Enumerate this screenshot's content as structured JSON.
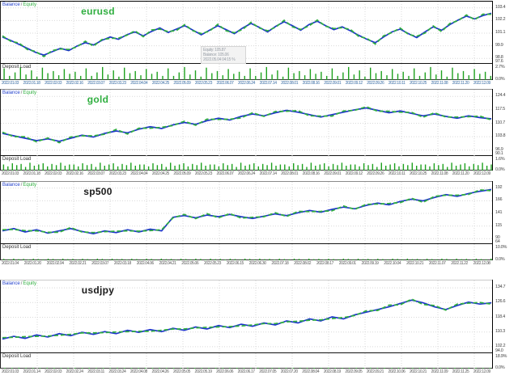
{
  "window": {
    "background": "#ffffff"
  },
  "colors": {
    "balance_line": "#1e35cc",
    "equity_line": "#2fae3f",
    "deposit_bars": "#1fa11f",
    "grid": "#d9d9d9",
    "axis_text": "#444444",
    "title_green": "#2fae3f",
    "title_black": "#1a1a1a"
  },
  "equity_delta": [
    2,
    -1.5,
    2.5,
    -2,
    1.5,
    -2.5,
    2,
    -1
  ],
  "tooltip": {
    "lines": [
      "Equity: 105.87",
      "Balance: 105.06",
      "2022.05.04 04:15 %"
    ]
  },
  "chart_data": [
    {
      "type": "line",
      "title": "eurusd",
      "title_color": "#2fae3f",
      "legend_balance": "Balance",
      "legend_sep": "/",
      "legend_equity": "Equity",
      "deposit_label": "Deposit Load",
      "legend_position": "top-left",
      "grid": true,
      "y_ticks": [
        "103.4",
        "102.2",
        "101.1",
        "99.9",
        "98.8"
      ],
      "y_bottom": "97.6",
      "deposit_max": "2.7%",
      "deposit_min": "0.0%",
      "x_dates": [
        "2022.01.03",
        "2022.01.18",
        "2022.02.03",
        "2022.02.16",
        "2022.03.07",
        "2022.03.23",
        "2022.04.04",
        "2022.04.25",
        "2022.05.09",
        "2022.05.23",
        "2022.06.07",
        "2022.06.24",
        "2022.07.14",
        "2022.08.01",
        "2022.08.16",
        "2022.09.01",
        "2022.09.12",
        "2022.09.26",
        "2022.10.11",
        "2022.10.25",
        "2022.11.08",
        "2022.11.20",
        "2022.12.09"
      ],
      "series": [
        {
          "name": "Balance",
          "values": [
            46,
            40,
            33,
            26,
            19,
            14,
            20,
            26,
            22,
            30,
            36,
            32,
            40,
            46,
            42,
            50,
            55,
            48,
            56,
            62,
            54,
            60,
            66,
            58,
            50,
            58,
            66,
            59,
            52,
            62,
            70,
            63,
            55,
            65,
            73,
            66,
            58,
            68,
            74,
            66,
            59,
            64,
            57,
            49,
            42,
            36,
            46,
            55,
            60,
            52,
            45,
            55,
            64,
            58,
            68,
            76,
            83,
            78,
            84,
            88
          ]
        },
        {
          "name": "Equity",
          "derived": "balance_plus_equity_delta"
        }
      ],
      "deposit_bars": [
        0.85,
        0.3,
        0.55,
        0.95,
        0.4,
        0.7,
        0.25,
        0.9,
        0.5,
        0.65,
        0.35,
        0.8,
        0.45,
        0.6,
        0.3,
        0.85,
        0.3,
        0.55,
        0.95,
        0.4,
        0.7,
        0.25,
        0.9,
        0.5,
        0.65,
        0.35,
        0.8,
        0.45,
        0.6,
        0.3,
        0.85,
        0.3,
        0.55,
        0.95,
        0.4,
        0.7,
        0.25,
        0.9,
        0.5,
        0.65,
        0.35,
        0.8,
        0.45,
        0.6,
        0.3,
        0.85,
        0.3,
        0.55,
        0.95,
        0.4,
        0.7,
        0.25,
        0.9,
        0.5,
        0.65,
        0.35,
        0.8,
        0.45,
        0.6,
        0.3,
        0.85,
        0.3,
        0.55,
        0.95,
        0.4,
        0.7,
        0.25,
        0.9,
        0.5,
        0.65,
        0.35,
        0.8,
        0.45,
        0.6,
        0.3,
        0.85,
        0.3,
        0.55,
        0.95,
        0.4,
        0.7,
        0.25,
        0.9,
        0.5,
        0.65,
        0.35,
        0.8,
        0.45,
        0.6,
        0.3
      ]
    },
    {
      "type": "line",
      "title": "gold",
      "title_color": "#2fae3f",
      "legend_balance": "Balance",
      "legend_sep": "/",
      "legend_equity": "Equity",
      "deposit_label": "Deposit Load",
      "legend_position": "top-left",
      "grid": true,
      "y_ticks": [
        "124.4",
        "117.5",
        "110.7",
        "103.8",
        "96.9"
      ],
      "y_bottom": "90.1",
      "deposit_max": "1.6%",
      "deposit_min": "0.0%",
      "x_dates": [
        "2022.01.03",
        "2022.01.18",
        "2022.02.03",
        "2022.02.16",
        "2022.03.07",
        "2022.03.23",
        "2022.04.04",
        "2022.04.25",
        "2022.05.09",
        "2022.05.23",
        "2022.06.07",
        "2022.06.24",
        "2022.07.14",
        "2022.08.01",
        "2022.08.16",
        "2022.09.01",
        "2022.09.12",
        "2022.09.26",
        "2022.10.11",
        "2022.10.25",
        "2022.11.08",
        "2022.11.20",
        "2022.12.09"
      ],
      "series": [
        {
          "name": "Balance",
          "values": [
            36,
            32,
            28,
            24,
            27,
            23,
            28,
            33,
            30,
            36,
            40,
            37,
            43,
            47,
            44,
            50,
            54,
            51,
            57,
            61,
            58,
            64,
            68,
            65,
            70,
            74,
            71,
            67,
            63,
            67,
            71,
            75,
            78,
            74,
            70,
            73,
            69,
            65,
            68,
            64,
            61,
            65,
            62,
            60
          ]
        },
        {
          "name": "Equity",
          "derived": "balance_plus_equity_delta"
        }
      ],
      "deposit_bars": [
        0.5,
        0.35,
        0.6,
        0.45,
        0.55,
        0.3,
        0.65,
        0.4,
        0.5,
        0.6,
        0.35,
        0.55,
        0.45,
        0.65,
        0.4,
        0.5,
        0.5,
        0.35,
        0.6,
        0.45,
        0.55,
        0.3,
        0.65,
        0.4,
        0.5,
        0.6,
        0.35,
        0.55,
        0.45,
        0.65,
        0.4,
        0.5,
        0.5,
        0.35,
        0.6,
        0.45,
        0.55,
        0.3,
        0.65,
        0.4,
        0.5,
        0.6,
        0.35,
        0.55,
        0.45,
        0.65,
        0.4,
        0.5,
        0.5,
        0.35,
        0.6,
        0.45,
        0.55,
        0.3,
        0.65,
        0.4,
        0.5,
        0.6,
        0.35,
        0.55,
        0.45,
        0.65,
        0.4,
        0.5,
        0.5,
        0.35,
        0.6,
        0.45,
        0.55,
        0.3,
        0.65,
        0.4,
        0.5,
        0.6,
        0.35,
        0.55,
        0.45,
        0.65,
        0.4,
        0.5,
        0.5,
        0.35,
        0.6,
        0.45,
        0.55,
        0.3,
        0.65,
        0.4,
        0.5,
        0.6,
        0.35,
        0.55,
        0.45,
        0.65,
        0.4,
        0.5,
        0.5,
        0.35,
        0.6,
        0.45,
        0.55,
        0.3,
        0.65,
        0.4,
        0.5,
        0.6,
        0.35,
        0.55,
        0.45,
        0.65,
        0.4,
        0.5
      ]
    },
    {
      "type": "line",
      "title": "sp500",
      "title_color": "#1a1a1a",
      "legend_balance": "Balance",
      "legend_sep": "/",
      "legend_equity": "Equity",
      "deposit_label": "Deposit Load",
      "legend_position": "top-left",
      "grid": true,
      "y_ticks": [
        "192",
        "166",
        "141",
        "115",
        "90"
      ],
      "y_bottom": "64",
      "deposit_max": "10.0%",
      "deposit_min": "0.0%",
      "x_dates": [
        "2022.01.04",
        "2022.01.20",
        "2022.02.04",
        "2022.02.21",
        "2022.03.07",
        "2022.03.18",
        "2022.04.06",
        "2022.04.21",
        "2022.05.06",
        "2022.05.23",
        "2022.06.15",
        "2022.06.30",
        "2022.07.18",
        "2022.08.02",
        "2022.08.17",
        "2022.09.01",
        "2022.09.19",
        "2022.10.04",
        "2022.10.21",
        "2022.11.07",
        "2022.11.22",
        "2022.12.08"
      ],
      "series": [
        {
          "name": "Balance",
          "values": [
            22,
            26,
            20,
            24,
            18,
            22,
            26,
            21,
            17,
            22,
            19,
            24,
            20,
            25,
            22,
            46,
            49,
            45,
            50,
            47,
            51,
            47,
            44,
            48,
            52,
            49,
            54,
            58,
            55,
            60,
            64,
            61,
            67,
            71,
            68,
            74,
            78,
            75,
            81,
            86,
            83,
            88,
            92,
            95
          ]
        },
        {
          "name": "Equity",
          "derived": "balance_plus_equity_delta"
        }
      ],
      "deposit_bars": [
        0.1,
        0.07,
        0.12,
        0.08,
        0.1,
        0.06,
        0.11,
        0.09,
        0.07,
        0.12,
        0.1,
        0.07,
        0.12,
        0.08,
        0.1,
        0.06,
        0.11,
        0.09,
        0.07,
        0.12,
        0.1,
        0.07,
        0.12,
        0.08,
        0.1,
        0.06,
        0.11,
        0.09,
        0.07,
        0.12,
        0.1,
        0.07,
        0.12,
        0.08,
        0.1,
        0.06,
        0.11,
        0.09,
        0.07,
        0.12,
        0.1,
        0.07,
        0.12,
        0.08,
        0.1,
        0.06,
        0.11,
        0.09,
        0.07,
        0.12,
        0.1,
        0.07,
        0.12,
        0.08,
        0.1,
        0.06,
        0.11,
        0.09,
        0.07,
        0.12,
        0.1,
        0.07,
        0.12,
        0.08,
        0.1,
        0.06,
        0.11,
        0.09,
        0.07,
        0.12,
        0.1,
        0.07,
        0.12,
        0.08,
        0.1,
        0.06,
        0.11,
        0.09,
        0.07,
        0.12,
        0.1,
        0.07,
        0.12,
        0.08,
        0.1,
        0.06,
        0.11,
        0.09,
        0.07,
        0.12,
        0.1,
        0.07,
        0.12,
        0.08,
        0.1,
        0.06,
        0.11,
        0.09,
        0.07,
        0.12
      ]
    },
    {
      "type": "line",
      "title": "usdjpy",
      "title_color": "#1a1a1a",
      "legend_balance": "Balance",
      "legend_sep": "/",
      "legend_equity": "Equity",
      "deposit_label": "Deposit Load",
      "legend_position": "top-left",
      "grid": true,
      "y_ticks": [
        "134.7",
        "126.6",
        "118.4",
        "110.3",
        "102.2"
      ],
      "y_bottom": "94.0",
      "deposit_max": "18.9%",
      "deposit_min": "0.0%",
      "x_dates": [
        "2022.01.03",
        "2022.01.14",
        "2022.02.03",
        "2022.02.24",
        "2022.03.11",
        "2022.03.24",
        "2022.04.08",
        "2022.04.26",
        "2022.05.05",
        "2022.05.19",
        "2022.06.06",
        "2022.06.17",
        "2022.07.05",
        "2022.07.20",
        "2022.08.04",
        "2022.08.19",
        "2022.09.05",
        "2022.09.21",
        "2022.10.06",
        "2022.10.21",
        "2022.11.09",
        "2022.11.25",
        "2022.12.09"
      ],
      "series": [
        {
          "name": "Balance",
          "values": [
            20,
            24,
            21,
            26,
            23,
            28,
            25,
            30,
            27,
            31,
            28,
            33,
            30,
            34,
            31,
            36,
            33,
            38,
            35,
            40,
            37,
            42,
            39,
            44,
            41,
            47,
            44,
            50,
            47,
            53,
            50,
            56,
            60,
            64,
            68,
            73,
            78,
            74,
            68,
            64,
            70,
            75,
            72,
            74
          ]
        },
        {
          "name": "Equity",
          "derived": "balance_plus_equity_delta"
        }
      ],
      "deposit_bars": [
        0.06,
        0.04,
        0.07,
        0.05,
        0.06,
        0.03,
        0.07,
        0.04,
        0.05,
        0.06,
        0.06,
        0.04,
        0.07,
        0.05,
        0.06,
        0.03,
        0.07,
        0.04,
        0.05,
        0.06,
        0.06,
        0.04,
        0.07,
        0.05,
        0.06,
        0.03,
        0.07,
        0.04,
        0.05,
        0.06,
        0.06,
        0.04,
        0.07,
        0.05,
        0.06,
        0.03,
        0.07,
        0.04,
        0.05,
        0.06,
        0.06,
        0.04,
        0.07,
        0.05,
        0.06,
        0.03,
        0.07,
        0.04,
        0.05,
        0.06,
        0.06,
        0.04,
        0.07,
        0.05,
        0.06,
        0.03,
        0.07,
        0.04,
        0.05,
        0.06,
        0.06,
        0.04,
        0.07,
        0.05,
        0.06,
        0.03,
        0.07,
        0.04,
        0.05,
        0.06
      ]
    }
  ]
}
